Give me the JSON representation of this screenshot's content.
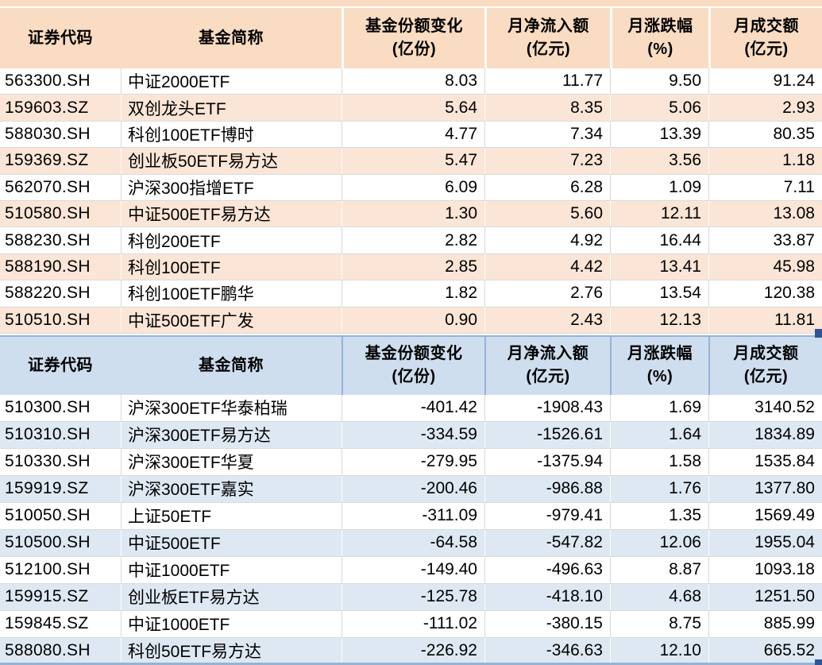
{
  "colors": {
    "peach_header": "#F9DCC1",
    "peach_row": "#FBE5D6",
    "blue_header": "#CEDEEF",
    "blue_row": "#DEE8F3",
    "blue_border": "#95B3D7",
    "selection_handle": "#2F5597",
    "row_divider": "#DBDBDB"
  },
  "tables": [
    {
      "theme": "peach",
      "columns": [
        {
          "line1": "证券代码",
          "line2": ""
        },
        {
          "line1": "基金简称",
          "line2": ""
        },
        {
          "line1": "基金份额变化",
          "line2": "(亿份)"
        },
        {
          "line1": "月净流入额",
          "line2": "(亿元)"
        },
        {
          "line1": "月涨跌幅",
          "line2": "(%)"
        },
        {
          "line1": "月成交额",
          "line2": "(亿元)"
        }
      ],
      "rows": [
        [
          "563300.SH",
          "中证2000ETF",
          "8.03",
          "11.77",
          "9.50",
          "91.24"
        ],
        [
          "159603.SZ",
          "双创龙头ETF",
          "5.64",
          "8.35",
          "5.06",
          "2.93"
        ],
        [
          "588030.SH",
          "科创100ETF博时",
          "4.77",
          "7.34",
          "13.39",
          "80.35"
        ],
        [
          "159369.SZ",
          "创业板50ETF易方达",
          "5.47",
          "7.23",
          "3.56",
          "1.18"
        ],
        [
          "562070.SH",
          "沪深300指增ETF",
          "6.09",
          "6.28",
          "1.09",
          "7.11"
        ],
        [
          "510580.SH",
          "中证500ETF易方达",
          "1.30",
          "5.60",
          "12.11",
          "13.08"
        ],
        [
          "588230.SH",
          "科创200ETF",
          "2.82",
          "4.92",
          "16.44",
          "33.87"
        ],
        [
          "588190.SH",
          "科创100ETF",
          "2.85",
          "4.42",
          "13.41",
          "45.98"
        ],
        [
          "588220.SH",
          "科创100ETF鹏华",
          "1.82",
          "2.76",
          "13.54",
          "120.38"
        ],
        [
          "510510.SH",
          "中证500ETF广发",
          "0.90",
          "2.43",
          "12.13",
          "11.81"
        ]
      ]
    },
    {
      "theme": "blue",
      "columns": [
        {
          "line1": "证券代码",
          "line2": ""
        },
        {
          "line1": "基金简称",
          "line2": ""
        },
        {
          "line1": "基金份额变化",
          "line2": "(亿份)"
        },
        {
          "line1": "月净流入额",
          "line2": "(亿元)"
        },
        {
          "line1": "月涨跌幅",
          "line2": "(%)"
        },
        {
          "line1": "月成交额",
          "line2": "(亿元)"
        }
      ],
      "rows": [
        [
          "510300.SH",
          "沪深300ETF华泰柏瑞",
          "-401.42",
          "-1908.43",
          "1.69",
          "3140.52"
        ],
        [
          "510310.SH",
          "沪深300ETF易方达",
          "-334.59",
          "-1526.61",
          "1.64",
          "1834.89"
        ],
        [
          "510330.SH",
          "沪深300ETF华夏",
          "-279.95",
          "-1375.94",
          "1.58",
          "1535.84"
        ],
        [
          "159919.SZ",
          "沪深300ETF嘉实",
          "-200.46",
          "-986.88",
          "1.76",
          "1377.80"
        ],
        [
          "510050.SH",
          "上证50ETF",
          "-311.09",
          "-979.41",
          "1.35",
          "1569.49"
        ],
        [
          "510500.SH",
          "中证500ETF",
          "-64.58",
          "-547.82",
          "12.06",
          "1955.04"
        ],
        [
          "512100.SH",
          "中证1000ETF",
          "-149.40",
          "-496.63",
          "8.87",
          "1093.18"
        ],
        [
          "159915.SZ",
          "创业板ETF易方达",
          "-125.78",
          "-418.10",
          "4.68",
          "1251.50"
        ],
        [
          "159845.SZ",
          "中证1000ETF",
          "-111.02",
          "-380.15",
          "8.75",
          "885.99"
        ],
        [
          "588080.SH",
          "科创50ETF易方达",
          "-226.92",
          "-346.63",
          "12.10",
          "665.52"
        ]
      ]
    }
  ]
}
